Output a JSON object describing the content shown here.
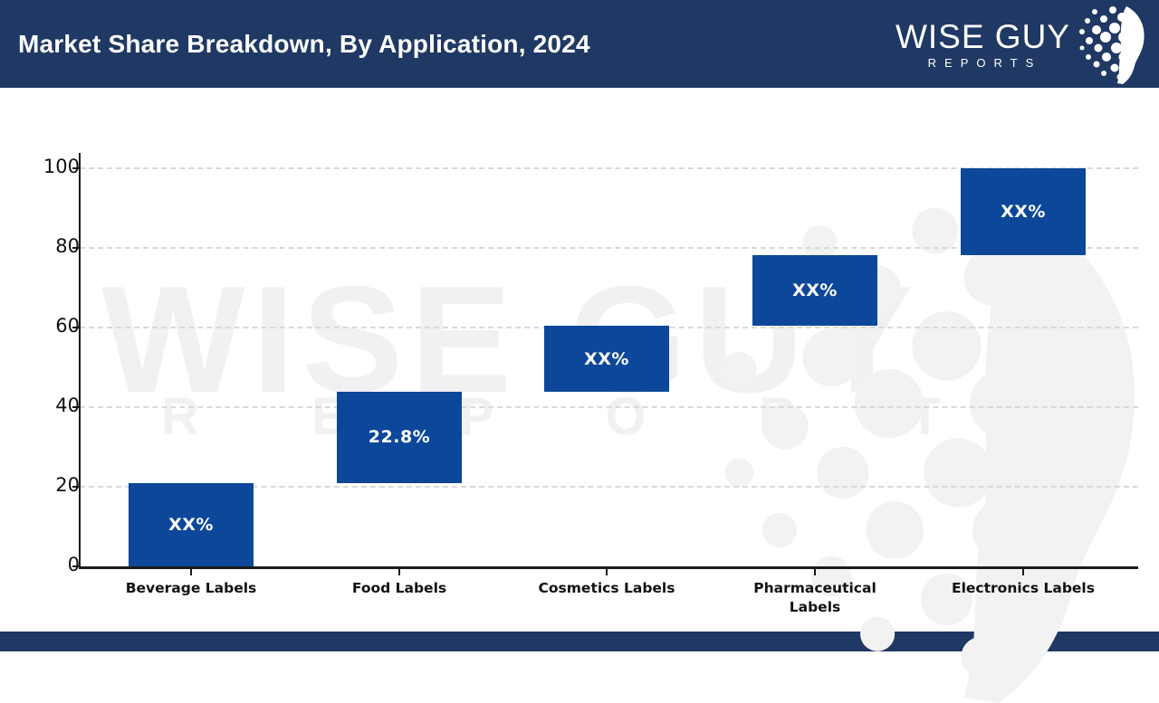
{
  "header": {
    "title": "Market Share Breakdown, By Application, 2024",
    "bg_color": "#1f3864",
    "logo": {
      "line1": "WISE GUY",
      "line2": "REPORTS"
    }
  },
  "watermark": {
    "line1": "WISE GUY",
    "line2": "REPORTS"
  },
  "chart_data": {
    "type": "bar",
    "subtype": "waterfall",
    "title": "Market Share Breakdown, By Application, 2024",
    "categories": [
      "Beverage Labels",
      "Food Labels",
      "Cosmetics Labels",
      "Pharmaceutical Labels",
      "Electronics Labels"
    ],
    "segments": [
      {
        "category": "Beverage Labels",
        "label": "XX%",
        "start": 0,
        "end": 21
      },
      {
        "category": "Food Labels",
        "label": "22.8%",
        "start": 21,
        "end": 43.8
      },
      {
        "category": "Cosmetics Labels",
        "label": "XX%",
        "start": 43.8,
        "end": 60.4
      },
      {
        "category": "Pharmaceutical Labels",
        "label": "XX%",
        "start": 60.4,
        "end": 78.2
      },
      {
        "category": "Electronics Labels",
        "label": "XX%",
        "start": 78.2,
        "end": 100
      }
    ],
    "bar_labels": [
      "XX%",
      "22.8%",
      "XX%",
      "XX%",
      "XX%"
    ],
    "bar_color": "#0d4799",
    "ylim": [
      0,
      100
    ],
    "yticks": [
      0,
      20,
      40,
      60,
      80,
      100
    ],
    "xlabel": "",
    "ylabel": "",
    "grid": "horizontal-dashed",
    "legend": "none"
  },
  "footer": {
    "bg_color": "#1f3864"
  }
}
